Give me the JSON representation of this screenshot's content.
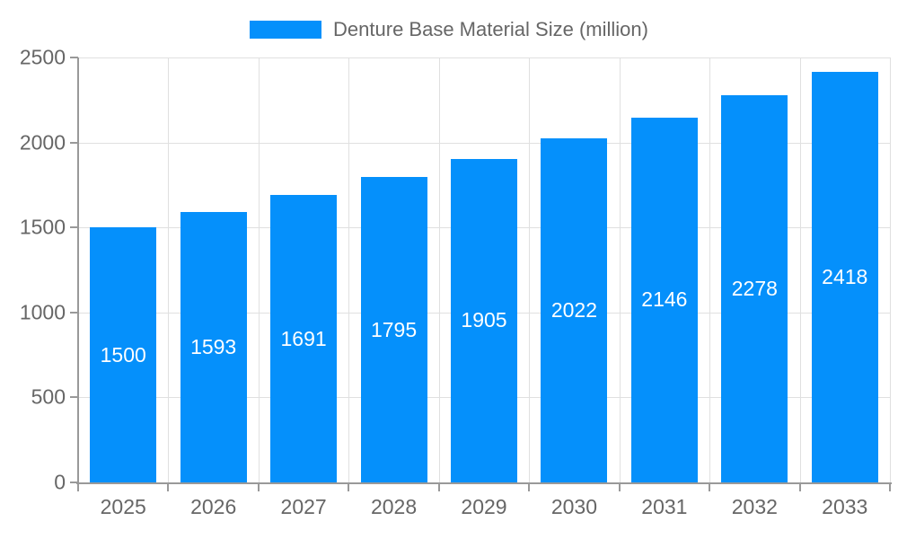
{
  "legend": {
    "label": "Denture Base Material Size (million)",
    "swatch_color": "#0590fb"
  },
  "chart_data": {
    "type": "bar",
    "title": "Denture Base Material Size (million)",
    "series_name": "Denture Base Material Size (million)",
    "categories": [
      "2025",
      "2026",
      "2027",
      "2028",
      "2029",
      "2030",
      "2031",
      "2032",
      "2033"
    ],
    "values": [
      1500,
      1593,
      1691,
      1795,
      1905,
      2022,
      2146,
      2278,
      2418
    ],
    "xlabel": "",
    "ylabel": "",
    "ylim": [
      0,
      2500
    ],
    "yticks": [
      0,
      500,
      1000,
      1500,
      2000,
      2500
    ],
    "grid": true,
    "legend_position": "top",
    "data_labels": "inside-center",
    "colors": {
      "bar": "#0590fb",
      "bar_label": "#ffffff",
      "grid": "#e0e0e0",
      "axis": "#999999",
      "tick_text": "#666666",
      "background": "#ffffff"
    }
  }
}
